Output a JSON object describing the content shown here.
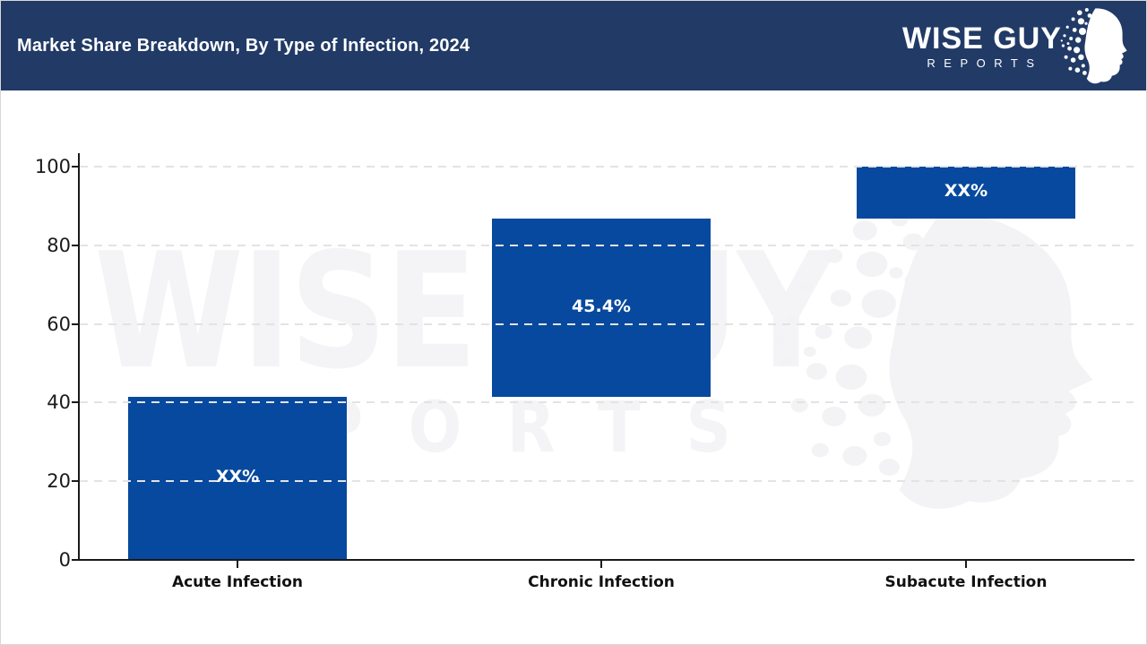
{
  "header": {
    "title": "Market Share Breakdown, By Type of Infection, 2024"
  },
  "brand": {
    "name_line": "WISE GUY",
    "reports_line": "REPORTS",
    "head_icon": "dotted-head-profile"
  },
  "watermark": {
    "name_line": "WISE GUY",
    "reports_line": "REPORTS",
    "head_icon": "dotted-head-profile"
  },
  "colors": {
    "header_bg": "#213a66",
    "bar": "#07499e",
    "grid": "#e3e3e3",
    "axis": "#1a1a1a",
    "watermark": "#f4f4f6",
    "page_border": "#d8d8d8"
  },
  "chart_data": {
    "type": "bar",
    "variant": "waterfall-stacked-percent",
    "title": "Market Share Breakdown, By Type of Infection, 2024",
    "categories": [
      "Acute Infection",
      "Chronic Infection",
      "Subacute Infection"
    ],
    "segments": [
      {
        "category": "Acute Infection",
        "start": 0,
        "end": 41.4,
        "value": 41.4,
        "label": "XX%"
      },
      {
        "category": "Chronic Infection",
        "start": 41.4,
        "end": 86.8,
        "value": 45.4,
        "label": "45.4%"
      },
      {
        "category": "Subacute Infection",
        "start": 86.8,
        "end": 100,
        "value": 13.2,
        "label": "XX%"
      }
    ],
    "yticks": [
      0,
      20,
      40,
      60,
      80,
      100
    ],
    "ylim": [
      0,
      103.5
    ],
    "xlabel": "",
    "ylabel": "",
    "grid": "dashed-horizontal",
    "legend": "none",
    "bar_label_color": "#ffffff"
  }
}
